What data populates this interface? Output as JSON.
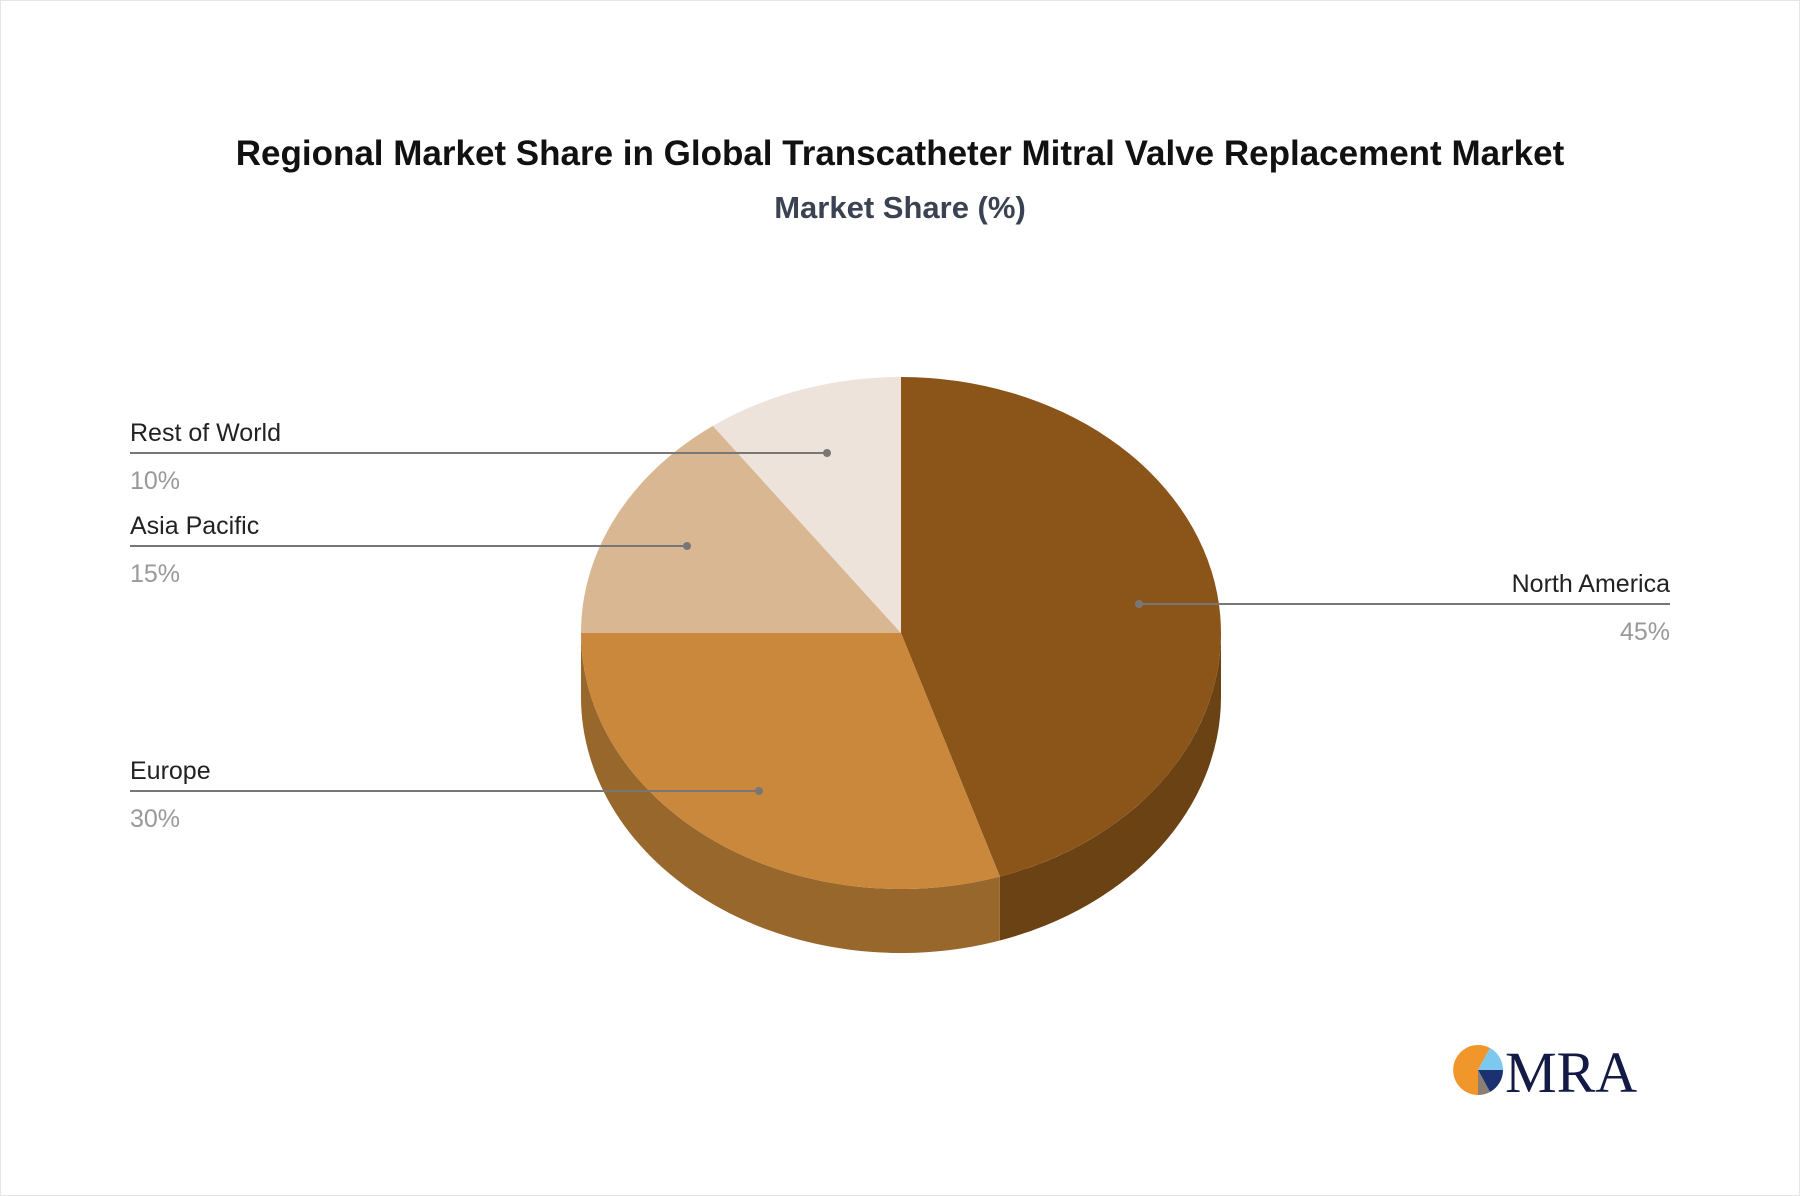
{
  "chart_data": {
    "type": "pie",
    "title": "Regional Market Share in Global Transcatheter Mitral Valve Replacement Market",
    "subtitle": "Market Share (%)",
    "style": "3d",
    "categories": [
      "North America",
      "Europe",
      "Asia Pacific",
      "Rest of World"
    ],
    "values": [
      45,
      30,
      15,
      10
    ],
    "value_labels": [
      "45%",
      "30%",
      "15%",
      "10%"
    ],
    "colors": [
      "#8b5519",
      "#c9883b",
      "#d8b792",
      "#ede3da"
    ],
    "side_colors": [
      "#6a4214",
      "#98672c",
      "#b0946f",
      "#c9bfb6"
    ]
  },
  "logo": {
    "text": "MRA",
    "colors": [
      "#f0962a",
      "#7cc8ef",
      "#1b3170",
      "#8a7f73",
      "#121a45"
    ]
  }
}
